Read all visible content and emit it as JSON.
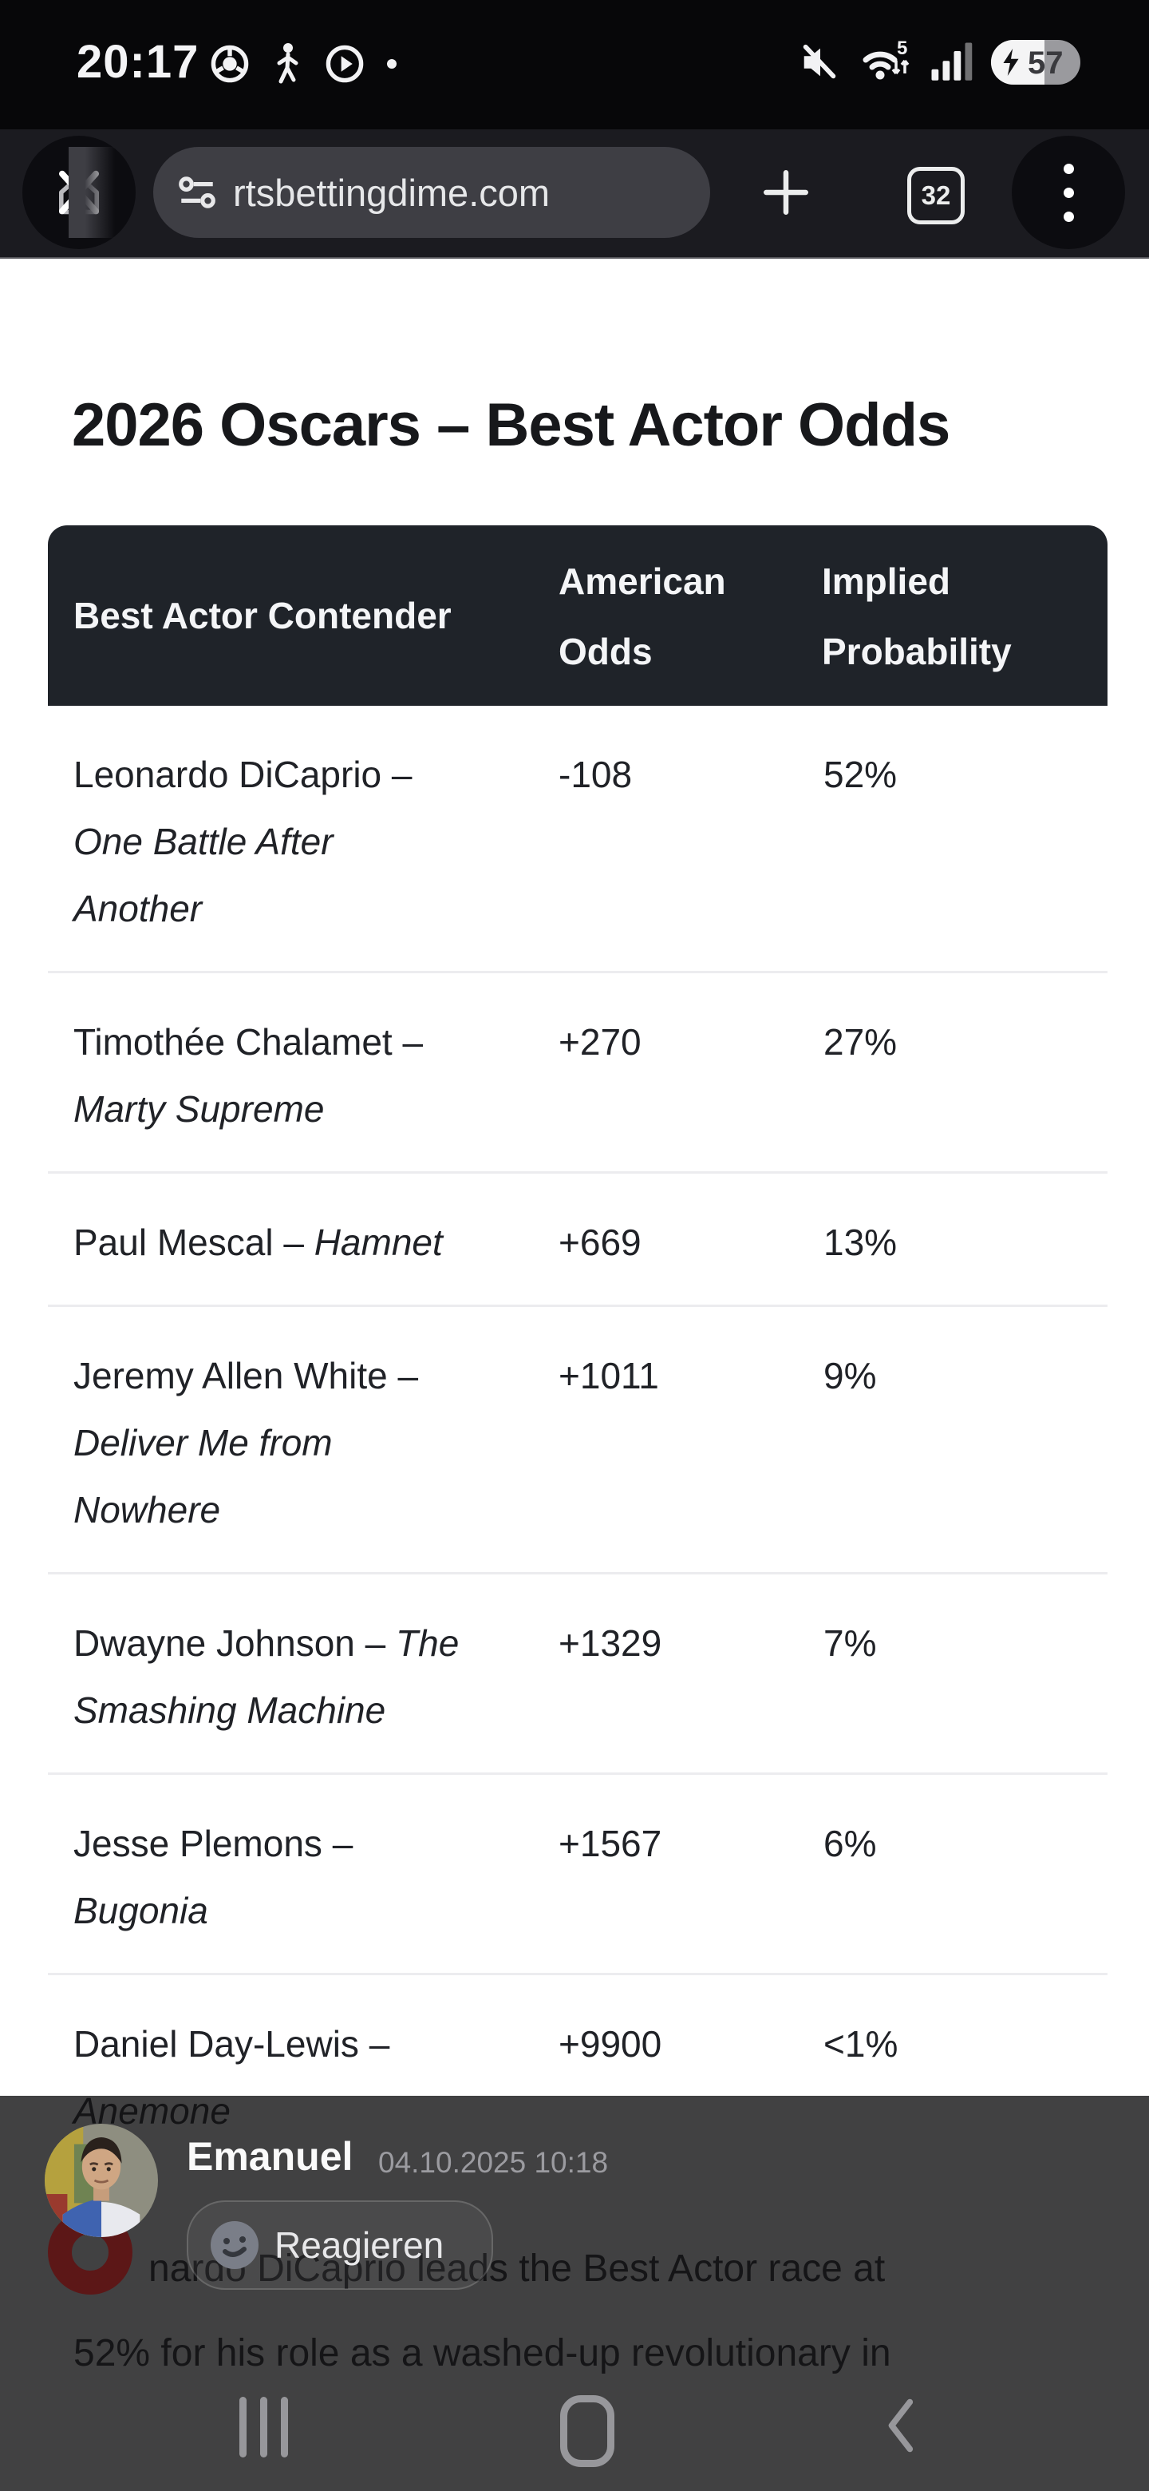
{
  "status_bar": {
    "time": "20:17",
    "battery_percent": "57",
    "wifi_label": "5",
    "icons": [
      "chrome-icon",
      "walking-person-icon",
      "play-circle-icon",
      "notification-dot",
      "mute-icon",
      "wifi-icon",
      "signal-icon",
      "battery-icon"
    ]
  },
  "browser_toolbar": {
    "url": "rtsbettingdime.com",
    "tab_count": "32",
    "icons": [
      "home-close-icon",
      "tune-icon",
      "plus-icon",
      "tab-switcher-icon",
      "overflow-menu-icon"
    ]
  },
  "page": {
    "title": "2026 Oscars – Best Actor Odds",
    "table": {
      "headers": [
        "Best Actor Contender",
        "American Odds",
        "Implied Probability"
      ],
      "rows": [
        {
          "lines": [
            [
              {
                "t": "Leonardo DiCaprio –",
                "i": false
              }
            ],
            [
              {
                "t": "One Battle After",
                "i": true
              }
            ],
            [
              {
                "t": "Another",
                "i": true
              }
            ]
          ],
          "odds": "-108",
          "prob": "52%"
        },
        {
          "lines": [
            [
              {
                "t": "Timothée Chalamet –",
                "i": false
              }
            ],
            [
              {
                "t": "Marty Supreme",
                "i": true
              }
            ]
          ],
          "odds": "+270",
          "prob": "27%"
        },
        {
          "lines": [
            [
              {
                "t": "Paul Mescal – ",
                "i": false
              },
              {
                "t": "Hamnet",
                "i": true
              }
            ]
          ],
          "odds": "+669",
          "prob": "13%"
        },
        {
          "lines": [
            [
              {
                "t": "Jeremy Allen White –",
                "i": false
              }
            ],
            [
              {
                "t": "Deliver Me from",
                "i": true
              }
            ],
            [
              {
                "t": "Nowhere",
                "i": true
              }
            ]
          ],
          "odds": "+1011",
          "prob": "9%"
        },
        {
          "lines": [
            [
              {
                "t": "Dwayne Johnson – ",
                "i": false
              },
              {
                "t": "The",
                "i": true
              }
            ],
            [
              {
                "t": "Smashing Machine",
                "i": true
              }
            ]
          ],
          "odds": "+1329",
          "prob": "7%"
        },
        {
          "lines": [
            [
              {
                "t": "Jesse Plemons –",
                "i": false
              }
            ],
            [
              {
                "t": "Bugonia",
                "i": true
              }
            ]
          ],
          "odds": "+1567",
          "prob": "6%"
        },
        {
          "lines": [
            [
              {
                "t": "Daniel Day-Lewis –",
                "i": false
              }
            ],
            [
              {
                "t": "Anemone",
                "i": true
              }
            ]
          ],
          "odds": "+9900",
          "prob": "<1%"
        }
      ]
    },
    "article_excerpt_line1": "nardo DiCaprio leads the Best Actor race at",
    "article_excerpt_line2": "52% for his role as a washed-up revolutionary in"
  },
  "overlay": {
    "username": "Emanuel",
    "timestamp": "04.10.2025 10:18",
    "react_label": "Reagieren"
  },
  "colors": {
    "table_header_bg": "#1f2329",
    "accent_red_ring": "#5c1717",
    "scrim": "rgba(17,17,19,0.80)"
  }
}
